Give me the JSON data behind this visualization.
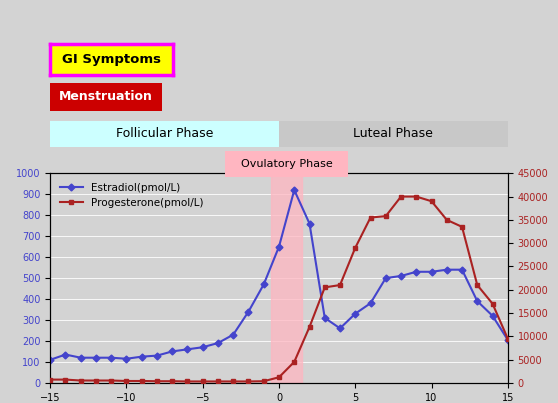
{
  "bg_color": "#d3d3d3",
  "gi_label": "GI Symptoms",
  "gi_bg": "#ffff00",
  "gi_border": "#ff00ff",
  "mens_label": "Menstruation",
  "mens_bg": "#cc0000",
  "mens_text_color": "#ffffff",
  "follicular_label": "Follicular Phase",
  "follicular_bg": "#ccffff",
  "luteal_label": "Luteal Phase",
  "luteal_bg": "#c8c8c8",
  "ovulatory_label": "Ovulatory Phase",
  "ovulatory_bg": "#ffb6c1",
  "estradiol_label": "Estradiol(pmol/L)",
  "estradiol_color": "#4444cc",
  "progesterone_label": "Progesterone(pmol/L)",
  "progesterone_color": "#aa2222",
  "xlim": [
    -15,
    15
  ],
  "ylim_left": [
    0,
    1000
  ],
  "ylim_right": [
    0,
    45000
  ],
  "estradiol_x": [
    -15,
    -14,
    -13,
    -12,
    -11,
    -10,
    -9,
    -8,
    -7,
    -6,
    -5,
    -4,
    -3,
    -2,
    -1,
    0,
    1,
    2,
    3,
    4,
    5,
    6,
    7,
    8,
    9,
    10,
    11,
    12,
    13,
    14,
    15
  ],
  "estradiol_y": [
    110,
    135,
    120,
    120,
    120,
    115,
    125,
    130,
    150,
    160,
    170,
    190,
    230,
    340,
    470,
    650,
    920,
    760,
    310,
    260,
    330,
    380,
    500,
    510,
    530,
    530,
    540,
    540,
    390,
    320,
    205
  ],
  "progesterone_x": [
    -15,
    -14,
    -13,
    -12,
    -11,
    -10,
    -9,
    -8,
    -7,
    -6,
    -5,
    -4,
    -3,
    -2,
    -1,
    0,
    1,
    2,
    3,
    4,
    5,
    6,
    7,
    8,
    9,
    10,
    11,
    12,
    13,
    14,
    15
  ],
  "progesterone_y": [
    700,
    700,
    500,
    500,
    500,
    400,
    400,
    350,
    350,
    300,
    300,
    300,
    300,
    300,
    350,
    1200,
    4500,
    12000,
    20500,
    21000,
    29000,
    35500,
    35800,
    40000,
    40000,
    39000,
    35000,
    33500,
    21000,
    17000,
    9500
  ],
  "xticks": [
    -15,
    -10,
    -5,
    0,
    5,
    10,
    15
  ],
  "yticks_left": [
    0,
    100,
    200,
    300,
    400,
    500,
    600,
    700,
    800,
    900,
    1000
  ],
  "yticks_right": [
    0,
    5000,
    10000,
    15000,
    20000,
    25000,
    30000,
    35000,
    40000,
    45000
  ],
  "ovul_xspan": [
    -0.5,
    1.5
  ]
}
